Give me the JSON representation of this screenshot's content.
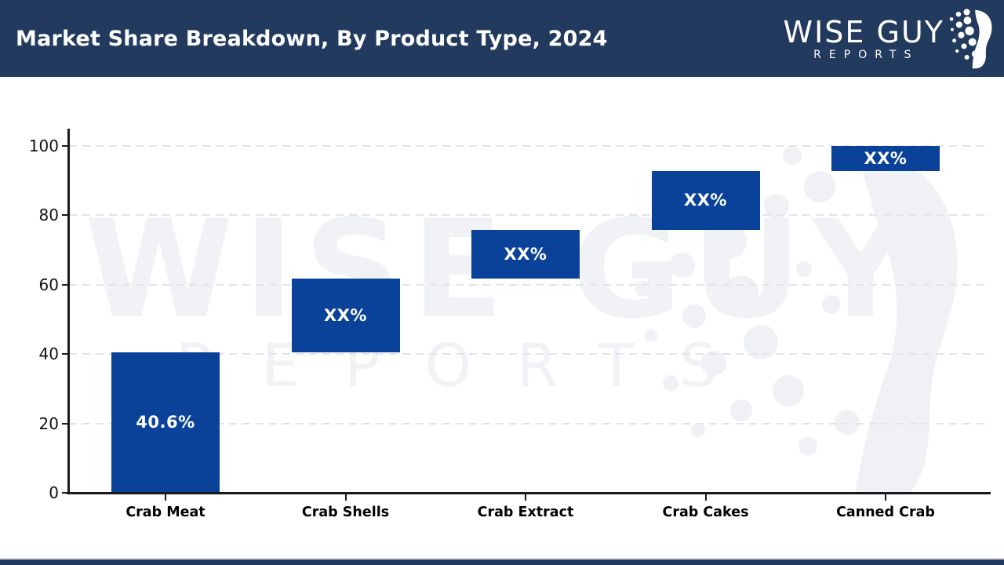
{
  "header": {
    "title": "Market Share Breakdown, By Product Type, 2024",
    "bg_color": "#233a5f",
    "logo": {
      "line1": "WISE GUY",
      "line2": "REPORTS"
    }
  },
  "watermark": {
    "line1": "WISE GUY",
    "line2": "REPORTS"
  },
  "chart_data": {
    "type": "bar",
    "subtype": "waterfall",
    "title": "Market Share Breakdown, By Product Type, 2024",
    "xlabel": "",
    "ylabel": "",
    "ylim": [
      0,
      100
    ],
    "yticks": [
      0,
      20,
      40,
      60,
      80,
      100
    ],
    "grid": "dashed-horizontal",
    "legend": "none",
    "bar_color": "#0a4199",
    "categories": [
      "Crab Meat",
      "Crab Shells",
      "Crab Extract",
      "Crab Cakes",
      "Canned Crab"
    ],
    "segments": [
      {
        "category": "Crab Meat",
        "start": 0,
        "end": 40.6,
        "label": "40.6%"
      },
      {
        "category": "Crab Shells",
        "start": 40.6,
        "end": 61.8,
        "label": "XX%"
      },
      {
        "category": "Crab Extract",
        "start": 61.8,
        "end": 75.8,
        "label": "XX%"
      },
      {
        "category": "Crab Cakes",
        "start": 75.8,
        "end": 92.8,
        "label": "XX%"
      },
      {
        "category": "Canned Crab",
        "start": 92.8,
        "end": 100,
        "label": "XX%"
      }
    ]
  }
}
